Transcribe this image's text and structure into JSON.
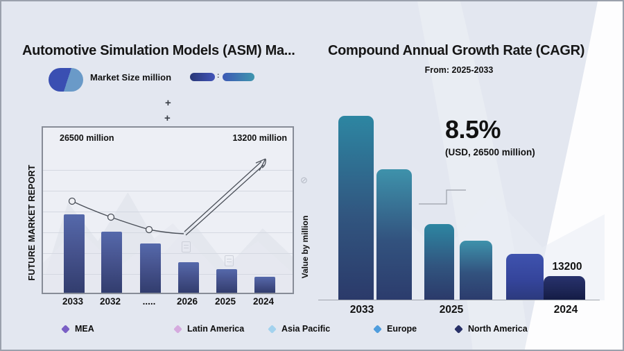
{
  "header": {
    "title_left": "Automotive Simulation Models (ASM) Ma...",
    "title_right": "Compound Annual Growth Rate (CAGR)",
    "subtitle_right": "From: 2025-2033",
    "market_size_label": "Market Size million",
    "plus_mark": "+",
    "mini_pill_separator": ":"
  },
  "watermark": "FUTURE MARKET REPORT",
  "cagr": {
    "value": "8.5%",
    "detail": "(USD, 26500 million)"
  },
  "right_axis_label": "Value by million",
  "icons": {
    "circle_slash": "⊘"
  },
  "chart_data": [
    {
      "id": "market-size-trend",
      "type": "bar",
      "title": "Market Size million",
      "categories": [
        "2033",
        "2032",
        ".....",
        "2026",
        "2025",
        "2024"
      ],
      "values": [
        100,
        78,
        63,
        39,
        30,
        20
      ],
      "values_unit": "relative-percent-of-tallest-bar",
      "annotation_left": "26500 million",
      "annotation_right": "13200 million",
      "trend_line": "declining from 2033 through 2026, then arrow rising to upper right",
      "grid": true,
      "bar_color_top": "#5569ab",
      "bar_color_bottom": "#323d6e"
    },
    {
      "id": "cagr-grouped-bars",
      "type": "bar",
      "categories": [
        "2033",
        "2025",
        "2024"
      ],
      "series": [
        {
          "name": "bar-1",
          "values": [
            100,
            41,
            25
          ]
        },
        {
          "name": "bar-2",
          "values": [
            71,
            32,
            13
          ]
        }
      ],
      "values_unit": "relative-percent-of-tallest-bar",
      "data_labels": {
        "2024": "13200"
      },
      "ylabel": "Value by million",
      "cagr": "8.5%",
      "cagr_detail": "(USD, 26500 million)",
      "bar_gradients": [
        {
          "top": "#2d86a2",
          "mid": "#31557f",
          "bottom": "#2b3a6a"
        },
        {
          "top": "#3e92ab",
          "mid": "#32527e",
          "bottom": "#2c3c6d"
        },
        {
          "top": "#2d86a2",
          "mid": "#31557f",
          "bottom": "#2b3a6a"
        },
        {
          "top": "#3e92ab",
          "mid": "#32527e",
          "bottom": "#2c3c6d"
        },
        {
          "top": "#3f53ae",
          "mid": "#35459c",
          "bottom": "#2c3a7e"
        },
        {
          "top": "#28326d",
          "mid": "#1e2758",
          "bottom": "#141c45"
        }
      ]
    }
  ],
  "region_legend": [
    {
      "label": "MEA",
      "color": "#7a5fc5"
    },
    {
      "label": "Latin America",
      "color": "#d5aade"
    },
    {
      "label": "Asia Pacific",
      "color": "#a3d2ee"
    },
    {
      "label": "Europe",
      "color": "#4f9ddd"
    },
    {
      "label": "North America",
      "color": "#283067"
    }
  ]
}
